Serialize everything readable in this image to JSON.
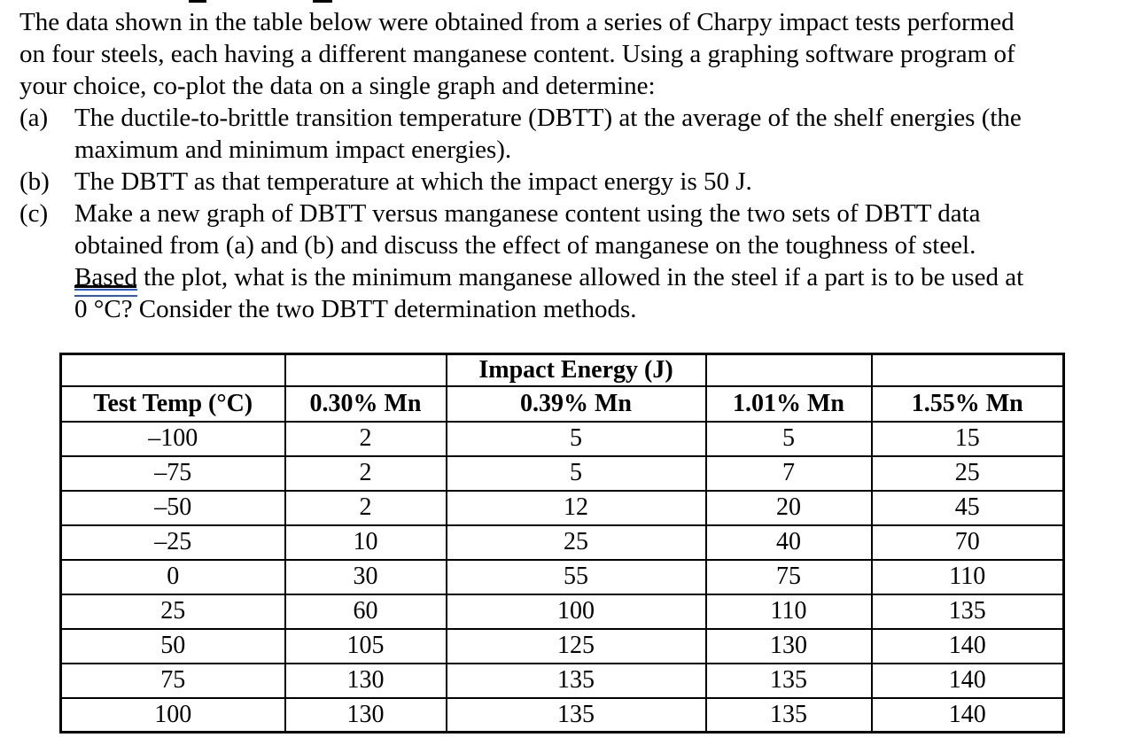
{
  "colors": {
    "ink": "#000000",
    "page_background": "#ffffff",
    "grammar_underline_blue": "#2857d8"
  },
  "problem": {
    "p1": "The data shown in the table below were obtained from a series of Charpy impact tests performed",
    "p2": "on four steels, each having a different manganese content. Using a graphing software program of",
    "p3": "your choice, co-plot the data on a single graph and determine:",
    "a_label": "(a)",
    "a1": "The ductile-to-brittle transition temperature (DBTT) at the average of the shelf energies (the",
    "a2": "maximum and minimum impact energies).",
    "b_label": "(b)",
    "b1": "The DBTT as that temperature at which the impact energy is 50 J.",
    "c_label": "(c)",
    "c1": "Make a new graph of DBTT versus manganese content using the two sets of DBTT data",
    "c2": "obtained from (a) and (b) and discuss the effect of manganese on the toughness of steel.",
    "c3_word": "Based",
    "c3_rest": " the plot, what is the minimum manganese allowed in the steel if a part is to be used at",
    "c4": "0 °C? Consider the two DBTT determination methods."
  },
  "table": {
    "spanning_header": "Impact Energy (J)",
    "columns": [
      "Test Temp (°C)",
      "0.30% Mn",
      "0.39% Mn",
      "1.01% Mn",
      "1.55% Mn"
    ],
    "rows": [
      [
        "–100",
        "2",
        "5",
        "5",
        "15"
      ],
      [
        "–75",
        "2",
        "5",
        "7",
        "25"
      ],
      [
        "–50",
        "2",
        "12",
        "20",
        "45"
      ],
      [
        "–25",
        "10",
        "25",
        "40",
        "70"
      ],
      [
        "0",
        "30",
        "55",
        "75",
        "110"
      ],
      [
        "25",
        "60",
        "100",
        "110",
        "135"
      ],
      [
        "50",
        "105",
        "125",
        "130",
        "140"
      ],
      [
        "75",
        "130",
        "135",
        "135",
        "140"
      ],
      [
        "100",
        "130",
        "135",
        "135",
        "140"
      ]
    ]
  }
}
